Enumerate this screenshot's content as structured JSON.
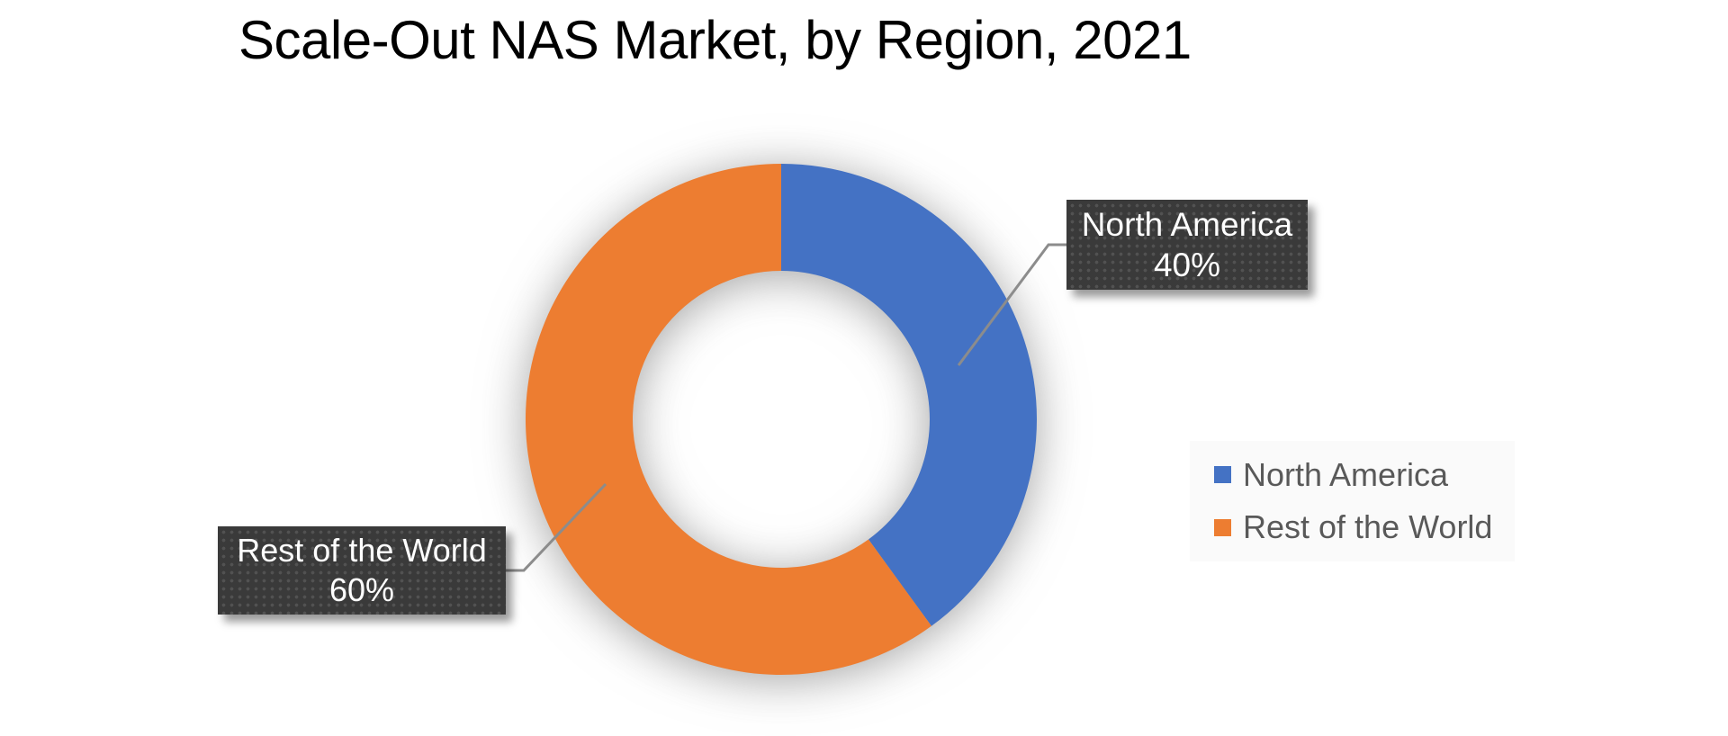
{
  "title": "Scale-Out NAS Market, by Region, 2021",
  "chart_data": {
    "type": "pie",
    "subtype": "donut",
    "title": "Scale-Out NAS Market, by Region, 2021",
    "categories": [
      "North America",
      "Rest of the World"
    ],
    "values": [
      40,
      60
    ],
    "unit": "%",
    "colors": [
      "#4472C4",
      "#ED7D31"
    ],
    "start_angle_deg": 0,
    "direction": "clockwise",
    "hole_ratio": 0.58,
    "legend_position": "right",
    "data_labels": [
      "North America 40%",
      "Rest of the World 60%"
    ]
  },
  "callouts": {
    "north_america": {
      "line1": "North America",
      "line2": "40%"
    },
    "rest_of_world": {
      "line1": "Rest of the World",
      "line2": "60%"
    }
  },
  "legend": {
    "items": [
      {
        "label": "North America",
        "color": "#4472C4"
      },
      {
        "label": "Rest of the World",
        "color": "#ED7D31"
      }
    ]
  },
  "style_colors": {
    "callout_background": "#3a3a3a",
    "callout_text": "#ffffff",
    "leader_line": "#8c8c8c",
    "legend_text": "#595959",
    "legend_background": "#fafafa",
    "title_text": "#000000",
    "page_background": "#ffffff"
  }
}
